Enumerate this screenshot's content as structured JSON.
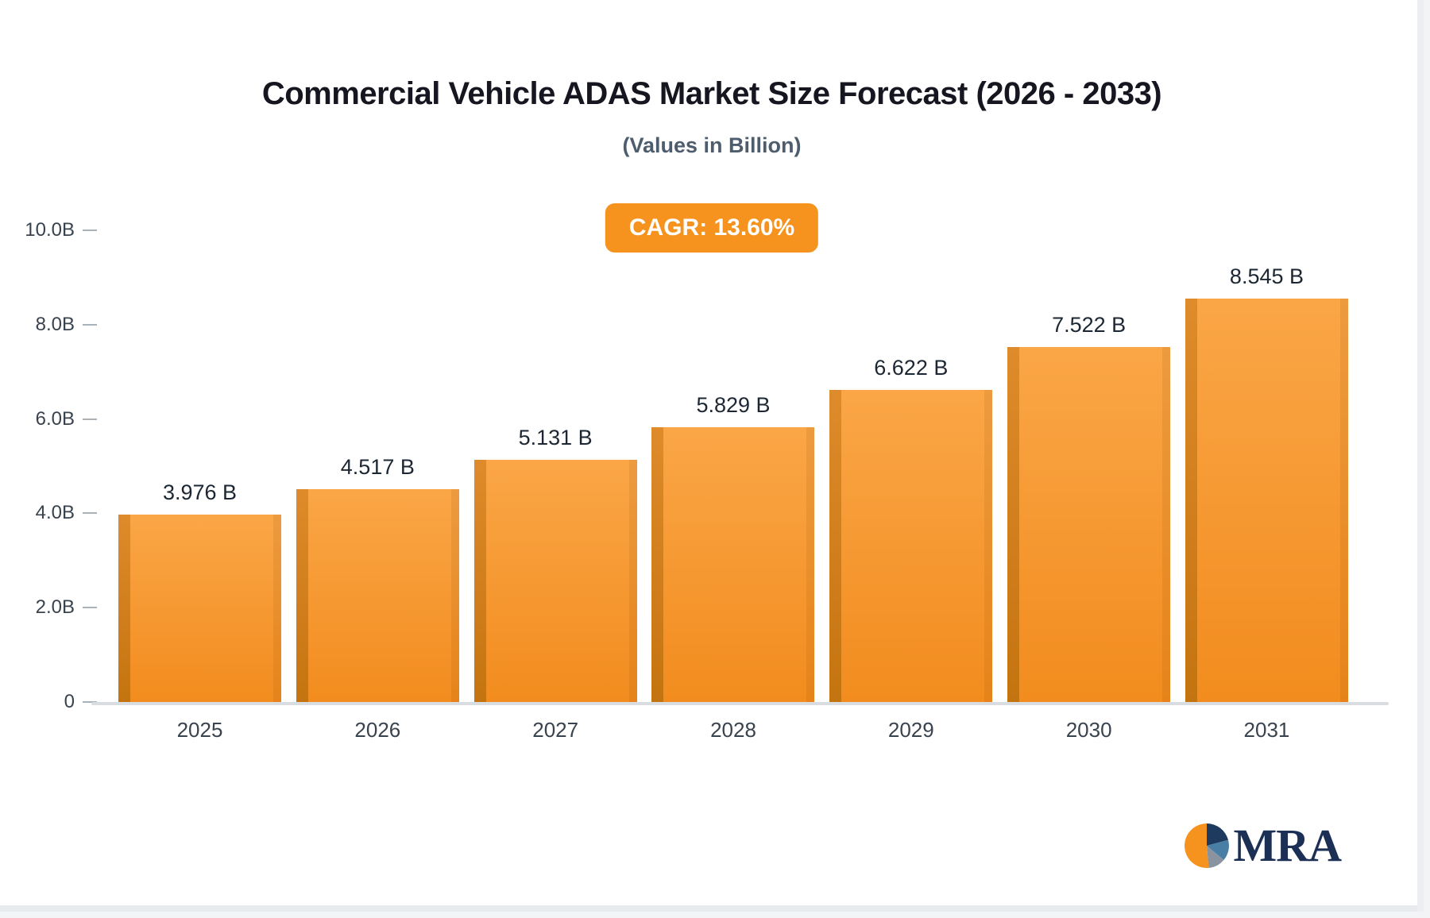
{
  "chart_data": {
    "type": "bar",
    "title": "Commercial Vehicle ADAS Market Size Forecast (2026 - 2033)",
    "subtitle": "(Values in Billion)",
    "badge": "CAGR: 13.60%",
    "categories": [
      "2025",
      "2026",
      "2027",
      "2028",
      "2029",
      "2030",
      "2031"
    ],
    "values": [
      3.976,
      4.517,
      5.131,
      5.829,
      6.622,
      7.522,
      8.545
    ],
    "value_labels": [
      "3.976 B",
      "4.517 B",
      "5.131 B",
      "5.829 B",
      "6.622 B",
      "7.522 B",
      "8.545 B"
    ],
    "xlabel": "",
    "ylabel": "",
    "ylim": [
      0,
      10
    ],
    "yticks": [
      10,
      8,
      6,
      4,
      2,
      0
    ],
    "ytick_labels": [
      "10.0B",
      "8.0B",
      "6.0B",
      "4.0B",
      "2.0B",
      "0"
    ],
    "grid": false,
    "legend": false
  },
  "colors": {
    "badge_bg": "#F6921E",
    "bar_top": "#FAA647",
    "bar_bottom": "#F28C1E",
    "bar_side": "#C4740F",
    "title_text": "#15161f",
    "axis_text": "#39434e",
    "logo_navy": "#1c2f55"
  },
  "logo": {
    "text": "MRA"
  }
}
